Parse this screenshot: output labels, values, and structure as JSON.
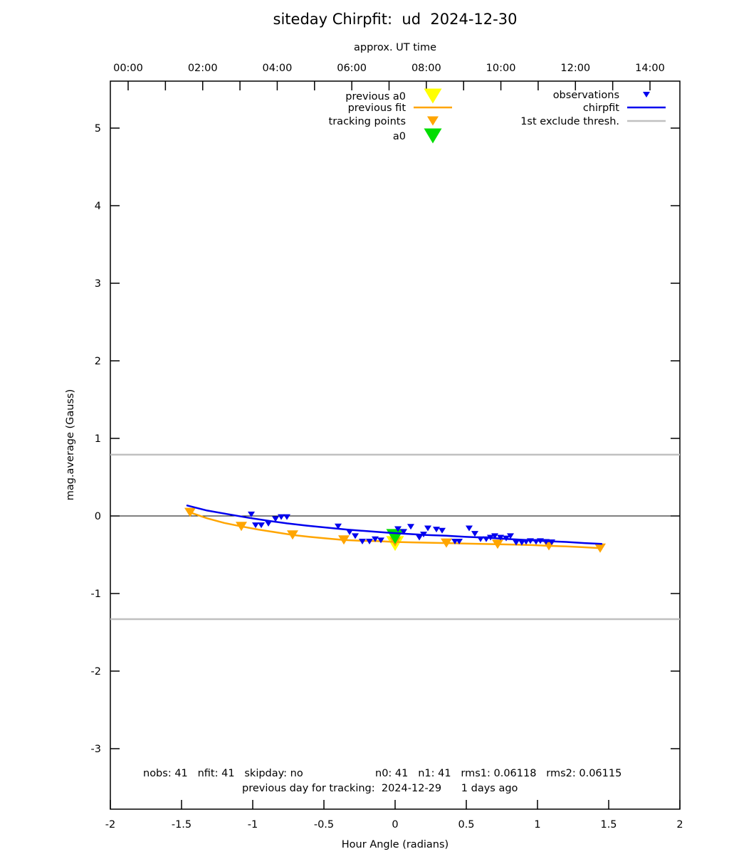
{
  "title": "siteday Chirpfit:  ud  2024-12-30",
  "colors": {
    "observations": "#0000ee",
    "chirpfit": "#0000ee",
    "previous_fit": "#ffa500",
    "tracking_points": "#ffa500",
    "previous_a0": "#ffff00",
    "a0": "#00dd00",
    "exclude_threshold": "#c0c0c0",
    "axis": "#000000"
  },
  "stats": {
    "nobs": "41",
    "nfit": "41",
    "skipday": "no",
    "n0": "41",
    "n1": "41",
    "rms1": "0.06118",
    "rms2": "0.06115",
    "previous_day_for_tracking": "2024-12-29",
    "days_ago": "1 days ago",
    "line1_left": "nobs: 41   nfit: 41   skipday: no",
    "line1_right": "n0: 41   n1: 41   rms1: 0.06118   rms2: 0.06115",
    "line2": "previous day for tracking:  2024-12-29      1 days ago"
  },
  "chart_data": {
    "type": "scatter",
    "title": "siteday Chirpfit:  ud  2024-12-30",
    "xlabel": "Hour Angle (radians)",
    "x2label": "approx. UT time",
    "ylabel": "mag.average (Gauss)",
    "xlim": [
      -2,
      2
    ],
    "ylim": [
      -3.78,
      5.61
    ],
    "grid": false,
    "zero_line": 0,
    "exclude_thresholds": [
      0.79,
      -1.33
    ],
    "xticks": [
      "-2",
      "-1.5",
      "-1",
      "-0.5",
      "0",
      "0.5",
      "1",
      "1.5",
      "2"
    ],
    "yticks": [
      "-3",
      "-2",
      "-1",
      "0",
      "1",
      "2",
      "3",
      "4",
      "5"
    ],
    "x2ticks": [
      {
        "h": 0,
        "label": "00:00"
      },
      {
        "h": 1,
        "label": ""
      },
      {
        "h": 2,
        "label": "02:00"
      },
      {
        "h": 3,
        "label": ""
      },
      {
        "h": 4,
        "label": "04:00"
      },
      {
        "h": 5,
        "label": ""
      },
      {
        "h": 6,
        "label": "06:00"
      },
      {
        "h": 7,
        "label": ""
      },
      {
        "h": 8,
        "label": "08:00"
      },
      {
        "h": 9,
        "label": ""
      },
      {
        "h": 10,
        "label": "10:00"
      },
      {
        "h": 11,
        "label": ""
      },
      {
        "h": 12,
        "label": "12:00"
      },
      {
        "h": 13,
        "label": ""
      },
      {
        "h": 14,
        "label": "14:00"
      }
    ],
    "series": [
      {
        "name": "previous a0",
        "type": "scatter",
        "marker": "triangle-down",
        "size": "large",
        "color": "#ffff00",
        "points": [
          [
            0.0,
            -0.355
          ]
        ]
      },
      {
        "name": "previous fit",
        "type": "line",
        "color": "#ffa500",
        "width": 2.5,
        "points": [
          [
            -1.44,
            0.045
          ],
          [
            -1.32,
            -0.03
          ],
          [
            -1.2,
            -0.09
          ],
          [
            -1.08,
            -0.135
          ],
          [
            -0.96,
            -0.175
          ],
          [
            -0.84,
            -0.21
          ],
          [
            -0.72,
            -0.245
          ],
          [
            -0.6,
            -0.27
          ],
          [
            -0.48,
            -0.29
          ],
          [
            -0.36,
            -0.31
          ],
          [
            -0.24,
            -0.32
          ],
          [
            -0.12,
            -0.325
          ],
          [
            0.0,
            -0.335
          ],
          [
            0.12,
            -0.34
          ],
          [
            0.24,
            -0.345
          ],
          [
            0.36,
            -0.35
          ],
          [
            0.48,
            -0.355
          ],
          [
            0.6,
            -0.36
          ],
          [
            0.72,
            -0.365
          ],
          [
            0.84,
            -0.37
          ],
          [
            0.96,
            -0.375
          ],
          [
            1.08,
            -0.385
          ],
          [
            1.2,
            -0.393
          ],
          [
            1.32,
            -0.403
          ],
          [
            1.44,
            -0.415
          ]
        ]
      },
      {
        "name": "tracking points",
        "type": "scatter",
        "marker": "triangle-down",
        "size": "small",
        "color": "#ffa500",
        "points": [
          [
            -1.44,
            0.045
          ],
          [
            -1.08,
            -0.135
          ],
          [
            -0.72,
            -0.245
          ],
          [
            -0.36,
            -0.31
          ],
          [
            0.0,
            -0.335
          ],
          [
            0.36,
            -0.35
          ],
          [
            0.72,
            -0.365
          ],
          [
            1.08,
            -0.385
          ],
          [
            1.44,
            -0.415
          ]
        ]
      },
      {
        "name": "a0",
        "type": "scatter",
        "marker": "triangle-down",
        "size": "large",
        "color": "#00dd00",
        "points": [
          [
            0.0,
            -0.265
          ]
        ]
      },
      {
        "name": "chirpfit",
        "type": "line",
        "color": "#0000ee",
        "width": 2.5,
        "points": [
          [
            -1.46,
            0.135
          ],
          [
            -1.32,
            0.07
          ],
          [
            -1.18,
            0.025
          ],
          [
            -1.04,
            -0.02
          ],
          [
            -0.9,
            -0.06
          ],
          [
            -0.76,
            -0.095
          ],
          [
            -0.62,
            -0.125
          ],
          [
            -0.48,
            -0.15
          ],
          [
            -0.34,
            -0.175
          ],
          [
            -0.2,
            -0.195
          ],
          [
            -0.06,
            -0.215
          ],
          [
            0.08,
            -0.23
          ],
          [
            0.22,
            -0.245
          ],
          [
            0.36,
            -0.255
          ],
          [
            0.5,
            -0.27
          ],
          [
            0.64,
            -0.28
          ],
          [
            0.78,
            -0.295
          ],
          [
            0.92,
            -0.31
          ],
          [
            1.06,
            -0.325
          ],
          [
            1.2,
            -0.335
          ],
          [
            1.33,
            -0.35
          ],
          [
            1.45,
            -0.36
          ]
        ]
      },
      {
        "name": "observations",
        "type": "scatter",
        "marker": "triangle-down",
        "size": "tiny",
        "color": "#0000ee",
        "points": [
          [
            -1.01,
            0.02
          ],
          [
            -0.98,
            -0.12
          ],
          [
            -0.94,
            -0.12
          ],
          [
            -0.89,
            -0.1
          ],
          [
            -0.84,
            -0.04
          ],
          [
            -0.8,
            -0.015
          ],
          [
            -0.76,
            -0.015
          ],
          [
            -0.4,
            -0.135
          ],
          [
            -0.32,
            -0.21
          ],
          [
            -0.28,
            -0.26
          ],
          [
            -0.23,
            -0.33
          ],
          [
            -0.18,
            -0.33
          ],
          [
            -0.14,
            -0.3
          ],
          [
            -0.1,
            -0.315
          ],
          [
            0.02,
            -0.17
          ],
          [
            0.06,
            -0.205
          ],
          [
            0.11,
            -0.14
          ],
          [
            0.17,
            -0.28
          ],
          [
            0.2,
            -0.24
          ],
          [
            0.23,
            -0.16
          ],
          [
            0.29,
            -0.175
          ],
          [
            0.33,
            -0.19
          ],
          [
            0.42,
            -0.33
          ],
          [
            0.45,
            -0.33
          ],
          [
            0.52,
            -0.16
          ],
          [
            0.56,
            -0.23
          ],
          [
            0.6,
            -0.3
          ],
          [
            0.64,
            -0.3
          ],
          [
            0.67,
            -0.28
          ],
          [
            0.7,
            -0.26
          ],
          [
            0.74,
            -0.28
          ],
          [
            0.78,
            -0.29
          ],
          [
            0.81,
            -0.26
          ],
          [
            0.85,
            -0.345
          ],
          [
            0.89,
            -0.345
          ],
          [
            0.92,
            -0.335
          ],
          [
            0.95,
            -0.325
          ],
          [
            0.99,
            -0.335
          ],
          [
            1.02,
            -0.325
          ],
          [
            1.06,
            -0.335
          ],
          [
            1.1,
            -0.34
          ]
        ]
      }
    ],
    "legend": {
      "left": [
        {
          "label": "previous a0",
          "marker": "triangle-large",
          "color": "#ffff00"
        },
        {
          "label": "previous fit",
          "marker": "line",
          "color": "#ffa500"
        },
        {
          "label": "tracking points",
          "marker": "triangle-small",
          "color": "#ffa500"
        },
        {
          "label": "a0",
          "marker": "triangle-large",
          "color": "#00dd00"
        }
      ],
      "right": [
        {
          "label": "observations",
          "marker": "triangle-tiny",
          "color": "#0000ee"
        },
        {
          "label": "chirpfit",
          "marker": "line",
          "color": "#0000ee"
        },
        {
          "label": "1st exclude thresh.",
          "marker": "line",
          "color": "#c0c0c0"
        }
      ]
    }
  }
}
